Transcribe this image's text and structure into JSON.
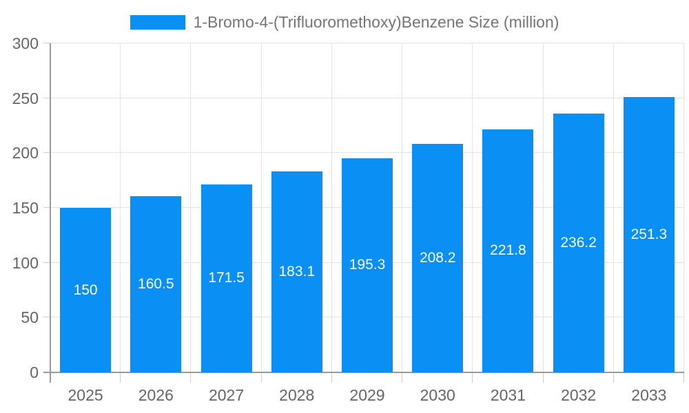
{
  "chart_data": {
    "type": "bar",
    "title": "1-Bromo-4-(Trifluoromethoxy)Benzene Size (million)",
    "categories": [
      "2025",
      "2026",
      "2027",
      "2028",
      "2029",
      "2030",
      "2031",
      "2032",
      "2033"
    ],
    "values": [
      150,
      160.5,
      171.5,
      183.1,
      195.3,
      208.2,
      221.8,
      236.2,
      251.3
    ],
    "xlabel": "",
    "ylabel": "",
    "ylim": [
      0,
      300
    ],
    "ytick_step": 50,
    "ytick_labels": [
      "0",
      "50",
      "100",
      "150",
      "200",
      "250",
      "300"
    ],
    "grid": true,
    "legend_position": "top",
    "bar_label_position": "center-inside",
    "colors": {
      "bar": "#0a90f5",
      "bar_label": "#ffffff",
      "axis_line": "#999999",
      "tick_line": "#cccccc",
      "grid_line": "#e2e2e2",
      "tick_label": "#666666",
      "legend_text": "#757575",
      "background": "#ffffff"
    }
  }
}
